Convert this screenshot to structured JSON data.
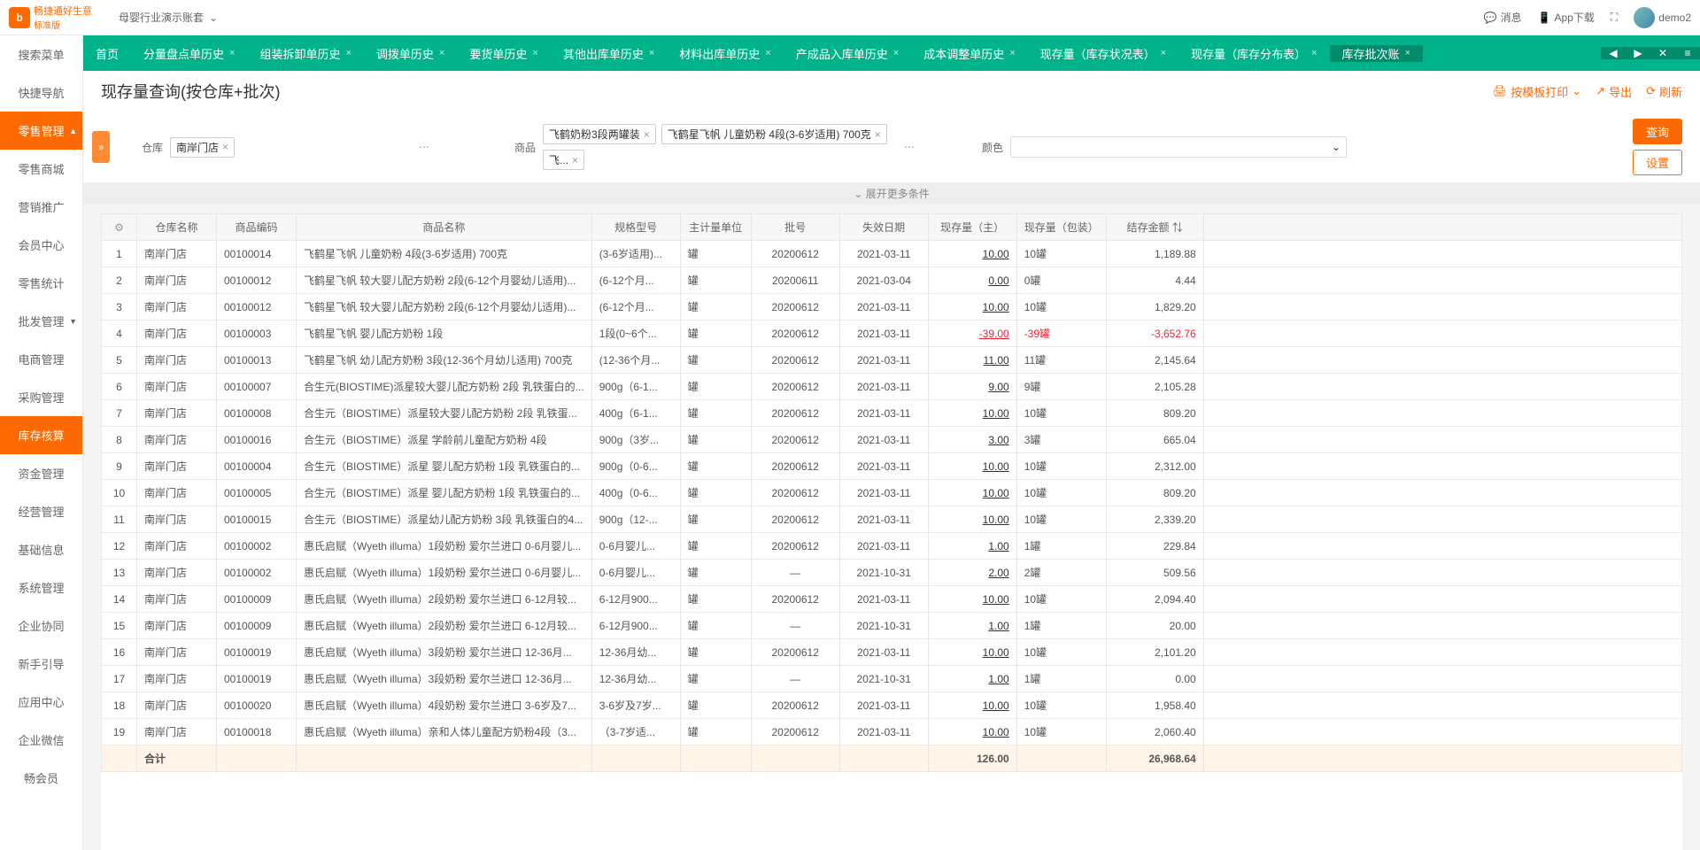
{
  "topbar": {
    "logo_sub": "标准版",
    "logo_main": "畅捷通好生意",
    "account": "母婴行业演示账套",
    "msg": "消息",
    "app": "App下载",
    "user": "demo2"
  },
  "sidebar": [
    {
      "label": "搜索菜单"
    },
    {
      "label": "快捷导航"
    },
    {
      "label": "零售管理",
      "active": true,
      "expand": "▲"
    },
    {
      "label": "零售商城",
      "sub": true
    },
    {
      "label": "营销推广",
      "sub": true
    },
    {
      "label": "会员中心",
      "sub": true
    },
    {
      "label": "零售统计",
      "sub": true
    },
    {
      "label": "批发管理",
      "expand": "▼"
    },
    {
      "label": "电商管理"
    },
    {
      "label": "采购管理"
    },
    {
      "label": "库存核算",
      "active_sub": true
    },
    {
      "label": "资金管理"
    },
    {
      "label": "经营管理"
    },
    {
      "label": "基础信息"
    },
    {
      "label": "系统管理"
    },
    {
      "label": "企业协同"
    },
    {
      "label": "新手引导"
    },
    {
      "label": "应用中心"
    },
    {
      "label": "企业微信"
    },
    {
      "label": "畅会员"
    }
  ],
  "tabs": [
    {
      "label": "首页"
    },
    {
      "label": "分量盘点单历史",
      "close": true
    },
    {
      "label": "组装拆卸单历史",
      "close": true
    },
    {
      "label": "调拨单历史",
      "close": true
    },
    {
      "label": "要货单历史",
      "close": true
    },
    {
      "label": "其他出库单历史",
      "close": true
    },
    {
      "label": "材料出库单历史",
      "close": true
    },
    {
      "label": "产成品入库单历史",
      "close": true
    },
    {
      "label": "成本调整单历史",
      "close": true
    },
    {
      "label": "现存量（库存状况表）",
      "close": true
    },
    {
      "label": "现存量（库存分布表）",
      "close": true
    },
    {
      "label": "库存批次账",
      "close": true,
      "active": true
    }
  ],
  "page": {
    "title": "现存量查询(按仓库+批次)",
    "print": "按模板打印",
    "export": "导出",
    "refresh": "刷新"
  },
  "filters": {
    "warehouse_label": "仓库",
    "warehouse_chip": "南岸门店",
    "product_label": "商品",
    "product_chips": [
      "飞鹤奶粉3段两罐装",
      "飞鹤星飞帆 儿童奶粉 4段(3-6岁适用) 700克",
      "飞..."
    ],
    "color_label": "颜色",
    "expand": "展开更多条件",
    "query": "查询",
    "settings": "设置"
  },
  "columns": [
    "",
    "仓库名称",
    "商品编码",
    "商品名称",
    "规格型号",
    "主计量单位",
    "批号",
    "失效日期",
    "现存量（主）",
    "现存量（包装）",
    "结存金额"
  ],
  "rows": [
    {
      "n": 1,
      "wh": "南岸门店",
      "code": "00100014",
      "name": "飞鹤星飞帆 儿童奶粉 4段(3-6岁适用) 700克",
      "spec": "(3-6岁适用)...",
      "unit": "罐",
      "batch": "20200612",
      "exp": "2021-03-11",
      "qty": "10.00",
      "pkg": "10罐",
      "amt": "1,189.88"
    },
    {
      "n": 2,
      "wh": "南岸门店",
      "code": "00100012",
      "name": "飞鹤星飞帆 较大婴儿配方奶粉 2段(6-12个月婴幼儿适用)...",
      "spec": "(6-12个月...",
      "unit": "罐",
      "batch": "20200611",
      "exp": "2021-03-04",
      "qty": "0.00",
      "pkg": "0罐",
      "amt": "4.44"
    },
    {
      "n": 3,
      "wh": "南岸门店",
      "code": "00100012",
      "name": "飞鹤星飞帆 较大婴儿配方奶粉 2段(6-12个月婴幼儿适用)...",
      "spec": "(6-12个月...",
      "unit": "罐",
      "batch": "20200612",
      "exp": "2021-03-11",
      "qty": "10.00",
      "pkg": "10罐",
      "amt": "1,829.20"
    },
    {
      "n": 4,
      "wh": "南岸门店",
      "code": "00100003",
      "name": "飞鹤星飞帆 婴儿配方奶粉 1段",
      "spec": "1段(0~6个...",
      "unit": "罐",
      "batch": "20200612",
      "exp": "2021-03-11",
      "qty": "-39.00",
      "pkg": "-39罐",
      "amt": "-3,652.76",
      "neg": true
    },
    {
      "n": 5,
      "wh": "南岸门店",
      "code": "00100013",
      "name": "飞鹤星飞帆 幼儿配方奶粉 3段(12-36个月幼儿适用) 700克",
      "spec": "(12-36个月...",
      "unit": "罐",
      "batch": "20200612",
      "exp": "2021-03-11",
      "qty": "11.00",
      "pkg": "11罐",
      "amt": "2,145.64"
    },
    {
      "n": 6,
      "wh": "南岸门店",
      "code": "00100007",
      "name": "合生元(BIOSTIME)派星较大婴儿配方奶粉 2段 乳铁蛋白的...",
      "spec": "900g（6-1...",
      "unit": "罐",
      "batch": "20200612",
      "exp": "2021-03-11",
      "qty": "9.00",
      "pkg": "9罐",
      "amt": "2,105.28"
    },
    {
      "n": 7,
      "wh": "南岸门店",
      "code": "00100008",
      "name": "合生元（BIOSTIME）派星较大婴儿配方奶粉 2段 乳铁蛋...",
      "spec": "400g（6-1...",
      "unit": "罐",
      "batch": "20200612",
      "exp": "2021-03-11",
      "qty": "10.00",
      "pkg": "10罐",
      "amt": "809.20"
    },
    {
      "n": 8,
      "wh": "南岸门店",
      "code": "00100016",
      "name": "合生元（BIOSTIME）派星 学龄前儿童配方奶粉 4段",
      "spec": "900g（3岁...",
      "unit": "罐",
      "batch": "20200612",
      "exp": "2021-03-11",
      "qty": "3.00",
      "pkg": "3罐",
      "amt": "665.04"
    },
    {
      "n": 9,
      "wh": "南岸门店",
      "code": "00100004",
      "name": "合生元（BIOSTIME）派星 婴儿配方奶粉 1段 乳铁蛋白的...",
      "spec": "900g（0-6...",
      "unit": "罐",
      "batch": "20200612",
      "exp": "2021-03-11",
      "qty": "10.00",
      "pkg": "10罐",
      "amt": "2,312.00"
    },
    {
      "n": 10,
      "wh": "南岸门店",
      "code": "00100005",
      "name": "合生元（BIOSTIME）派星 婴儿配方奶粉 1段 乳铁蛋白的...",
      "spec": "400g（0-6...",
      "unit": "罐",
      "batch": "20200612",
      "exp": "2021-03-11",
      "qty": "10.00",
      "pkg": "10罐",
      "amt": "809.20"
    },
    {
      "n": 11,
      "wh": "南岸门店",
      "code": "00100015",
      "name": "合生元（BIOSTIME）派星幼儿配方奶粉 3段 乳铁蛋白的4...",
      "spec": "900g（12-...",
      "unit": "罐",
      "batch": "20200612",
      "exp": "2021-03-11",
      "qty": "10.00",
      "pkg": "10罐",
      "amt": "2,339.20"
    },
    {
      "n": 12,
      "wh": "南岸门店",
      "code": "00100002",
      "name": "惠氏启赋（Wyeth illuma）1段奶粉 爱尔兰进口 0-6月婴儿...",
      "spec": "0-6月婴儿...",
      "unit": "罐",
      "batch": "20200612",
      "exp": "2021-03-11",
      "qty": "1.00",
      "pkg": "1罐",
      "amt": "229.84"
    },
    {
      "n": 13,
      "wh": "南岸门店",
      "code": "00100002",
      "name": "惠氏启赋（Wyeth illuma）1段奶粉 爱尔兰进口 0-6月婴儿...",
      "spec": "0-6月婴儿...",
      "unit": "罐",
      "batch": "—",
      "exp": "2021-10-31",
      "qty": "2.00",
      "pkg": "2罐",
      "amt": "509.56"
    },
    {
      "n": 14,
      "wh": "南岸门店",
      "code": "00100009",
      "name": "惠氏启赋（Wyeth illuma）2段奶粉 爱尔兰进口 6-12月较...",
      "spec": "6-12月900...",
      "unit": "罐",
      "batch": "20200612",
      "exp": "2021-03-11",
      "qty": "10.00",
      "pkg": "10罐",
      "amt": "2,094.40"
    },
    {
      "n": 15,
      "wh": "南岸门店",
      "code": "00100009",
      "name": "惠氏启赋（Wyeth illuma）2段奶粉 爱尔兰进口 6-12月较...",
      "spec": "6-12月900...",
      "unit": "罐",
      "batch": "—",
      "exp": "2021-10-31",
      "qty": "1.00",
      "pkg": "1罐",
      "amt": "20.00"
    },
    {
      "n": 16,
      "wh": "南岸门店",
      "code": "00100019",
      "name": "惠氏启赋（Wyeth illuma）3段奶粉 爱尔兰进口 12-36月...",
      "spec": "12-36月幼...",
      "unit": "罐",
      "batch": "20200612",
      "exp": "2021-03-11",
      "qty": "10.00",
      "pkg": "10罐",
      "amt": "2,101.20"
    },
    {
      "n": 17,
      "wh": "南岸门店",
      "code": "00100019",
      "name": "惠氏启赋（Wyeth illuma）3段奶粉 爱尔兰进口 12-36月...",
      "spec": "12-36月幼...",
      "unit": "罐",
      "batch": "—",
      "exp": "2021-10-31",
      "qty": "1.00",
      "pkg": "1罐",
      "amt": "0.00"
    },
    {
      "n": 18,
      "wh": "南岸门店",
      "code": "00100020",
      "name": "惠氏启赋（Wyeth illuma）4段奶粉 爱尔兰进口 3-6岁及7...",
      "spec": "3-6岁及7岁...",
      "unit": "罐",
      "batch": "20200612",
      "exp": "2021-03-11",
      "qty": "10.00",
      "pkg": "10罐",
      "amt": "1,958.40"
    },
    {
      "n": 19,
      "wh": "南岸门店",
      "code": "00100018",
      "name": "惠氏启赋（Wyeth illuma）亲和人体儿童配方奶粉4段（3...",
      "spec": "（3-7岁适...",
      "unit": "罐",
      "batch": "20200612",
      "exp": "2021-03-11",
      "qty": "10.00",
      "pkg": "10罐",
      "amt": "2,060.40"
    }
  ],
  "totals": {
    "label": "合计",
    "qty": "126.00",
    "amt": "26,968.64"
  }
}
